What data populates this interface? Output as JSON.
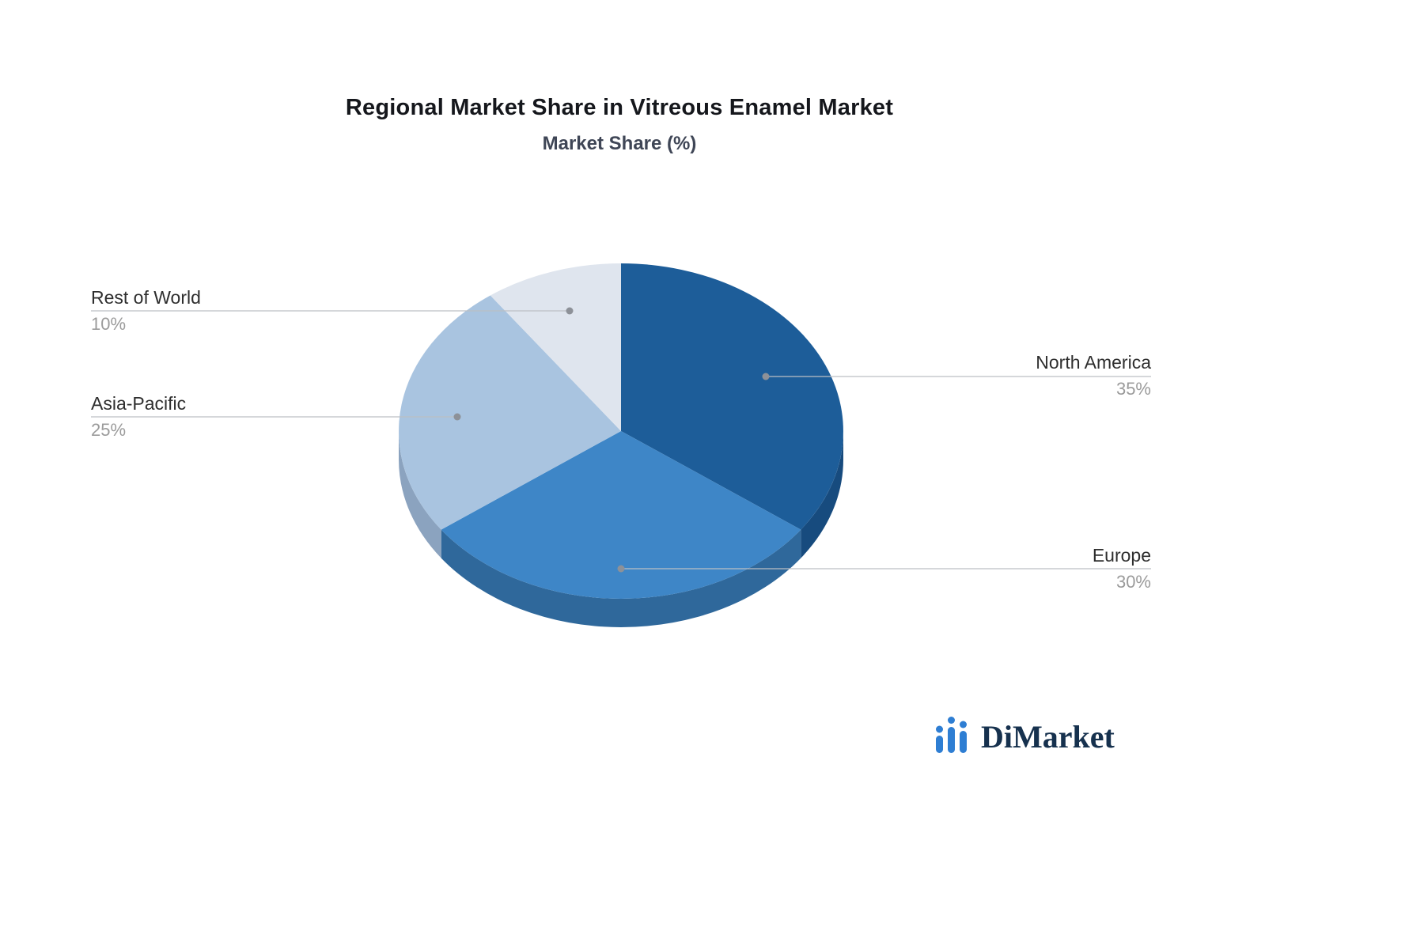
{
  "chart_data": {
    "type": "pie",
    "title": "Regional Market Share in Vitreous Enamel Market",
    "subtitle": "Market Share (%)",
    "unit": "%",
    "effect": "3d",
    "direction": "clockwise",
    "start_angle_deg": 0,
    "legend_position": "none",
    "slices": [
      {
        "label": "North America",
        "value": 35,
        "value_text": "35%",
        "color": "#1d5d99",
        "side_color": "#174b7e"
      },
      {
        "label": "Europe",
        "value": 30,
        "value_text": "30%",
        "color": "#3e86c7",
        "side_color": "#2f689b"
      },
      {
        "label": "Asia-Pacific",
        "value": 25,
        "value_text": "25%",
        "color": "#a9c4e0",
        "side_color": "#8ba3bf"
      },
      {
        "label": "Rest of World",
        "value": 10,
        "value_text": "10%",
        "color": "#dfe5ee",
        "side_color": "#bcc5d2"
      }
    ]
  },
  "callout_colors": {
    "line": "#bcbfc4",
    "dot": "#8d9198",
    "name_text": "#2e2e2e",
    "value_text": "#9b9b9b"
  },
  "branding": {
    "logo_text": "DiMarket",
    "text_color": "#16314e",
    "icon_color": "#2e7ed3"
  }
}
